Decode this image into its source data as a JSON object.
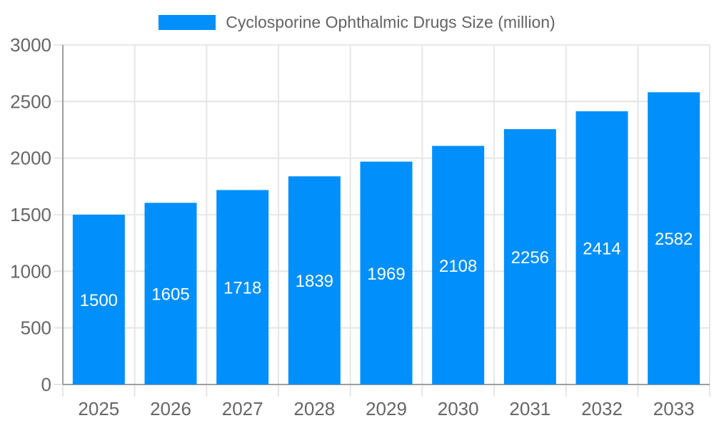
{
  "chart_data": {
    "type": "bar",
    "title": "Cyclosporine Ophthalmic Drugs Size (million)",
    "legend": {
      "label": "Cyclosporine Ophthalmic Drugs Size (million)",
      "position": "top"
    },
    "categories": [
      "2025",
      "2026",
      "2027",
      "2028",
      "2029",
      "2030",
      "2031",
      "2032",
      "2033"
    ],
    "values": [
      1500,
      1605,
      1718,
      1839,
      1969,
      2108,
      2256,
      2414,
      2582
    ],
    "value_labels_shown": true,
    "xlabel": "",
    "ylabel": "",
    "ylim": [
      0,
      3000
    ],
    "y_ticks": [
      0,
      500,
      1000,
      1500,
      2000,
      2500,
      3000
    ],
    "grid": true,
    "colors": {
      "bar": "#008FFB",
      "value_label": "#ffffff",
      "axis_label": "#666666",
      "title": "#636363",
      "grid_line": "#e4e4e4",
      "axis_line": "#9e9e9e"
    }
  }
}
